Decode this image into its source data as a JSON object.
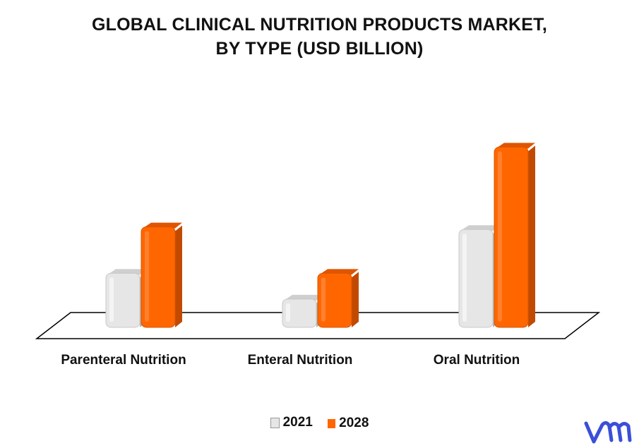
{
  "chart_data": {
    "type": "bar",
    "title_line1": "GLOBAL CLINICAL NUTRITION PRODUCTS MARKET,",
    "title_line2": "BY TYPE (USD BILLION)",
    "categories": [
      "Parenteral Nutrition",
      "Enteral Nutrition",
      "Oral Nutrition"
    ],
    "series": [
      {
        "name": "2021",
        "values": [
          2.1,
          1.1,
          3.8
        ],
        "color": "#e6e6e6"
      },
      {
        "name": "2028",
        "values": [
          3.9,
          2.1,
          7.0
        ],
        "color": "#ff6600"
      }
    ],
    "ylim": [
      0,
      7.5
    ],
    "grid": false,
    "legend": "bottom-center",
    "xlabel": "",
    "ylabel": ""
  },
  "logo": {
    "icon": "vmr-logo-icon",
    "color": "#3b4fd8"
  }
}
